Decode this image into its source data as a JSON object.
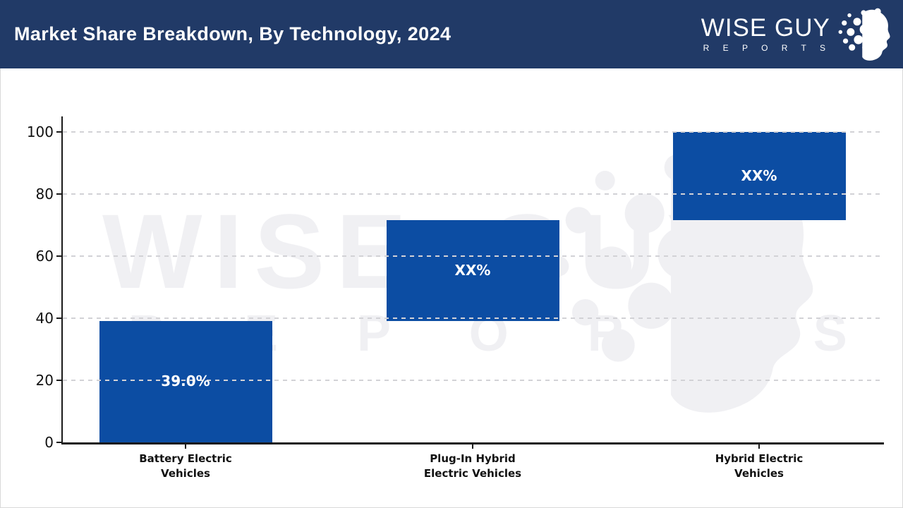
{
  "header": {
    "title": "Market Share Breakdown, By Technology, 2024",
    "brand": {
      "line1": "WISE GUY",
      "line2": "R E P O R T S"
    },
    "bg_color": "#213a67"
  },
  "watermark": {
    "line1": "WISE GUY",
    "line2": "R E P O R T S"
  },
  "chart_data": {
    "type": "bar",
    "subtype": "waterfall-breakdown",
    "title": "Market Share Breakdown, By Technology, 2024",
    "categories": [
      "Battery Electric\nVehicles",
      "Plug-In Hybrid\nElectric Vehicles",
      "Hybrid Electric\nVehicles"
    ],
    "bars": [
      {
        "base": 0,
        "top": 39.0,
        "label": "39.0%"
      },
      {
        "base": 39.0,
        "top": 71.5,
        "label": "XX%"
      },
      {
        "base": 71.5,
        "top": 100.0,
        "label": "XX%"
      }
    ],
    "yticks": [
      0,
      20,
      40,
      60,
      80,
      100
    ],
    "ylim": [
      0,
      105
    ],
    "xlabel": "",
    "ylabel": "",
    "grid": "horizontal-dashed-over-bars",
    "legend": "none",
    "bar_color": "#0c4da3",
    "grid_color": "#d2d2d6",
    "label_color": "#ffffff"
  }
}
